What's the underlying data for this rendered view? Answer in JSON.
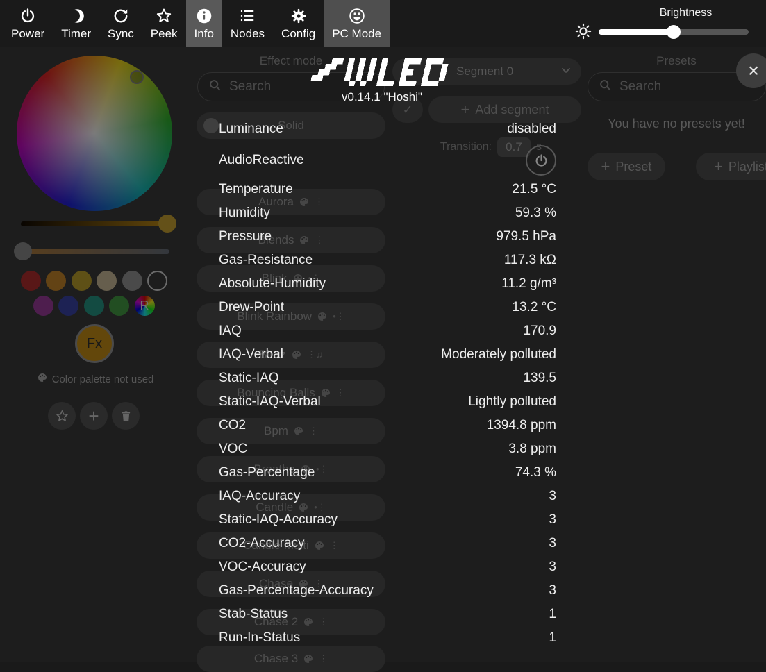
{
  "toolbar": {
    "items": [
      {
        "key": "power",
        "label": "Power",
        "icon": "power-icon",
        "active": false
      },
      {
        "key": "timer",
        "label": "Timer",
        "icon": "moon-icon",
        "active": false
      },
      {
        "key": "sync",
        "label": "Sync",
        "icon": "sync-icon",
        "active": false
      },
      {
        "key": "peek",
        "label": "Peek",
        "icon": "star-icon",
        "active": false
      },
      {
        "key": "info",
        "label": "Info",
        "icon": "info-icon",
        "active": true
      },
      {
        "key": "nodes",
        "label": "Nodes",
        "icon": "nodes-icon",
        "active": false
      },
      {
        "key": "config",
        "label": "Config",
        "icon": "gear-icon",
        "active": false
      },
      {
        "key": "pcmode",
        "label": "PC Mode",
        "icon": "smiley-icon",
        "active": true
      }
    ]
  },
  "brightness": {
    "label": "Brightness",
    "percent": 50
  },
  "icons": {
    "close": "×",
    "check": "✓",
    "more": "⋮",
    "music": "♫",
    "plus": "+",
    "star": "☆"
  },
  "info": {
    "version": "v0.14.1 \"Hoshi\"",
    "rows": [
      {
        "label": "Luminance",
        "value": "disabled"
      },
      {
        "label": "AudioReactive",
        "value": "",
        "power_button": true
      },
      {
        "label": "Temperature",
        "value": "21.5 °C"
      },
      {
        "label": "Humidity",
        "value": "59.3 %"
      },
      {
        "label": "Pressure",
        "value": "979.5 hPa"
      },
      {
        "label": "Gas-Resistance",
        "value": "117.3 kΩ"
      },
      {
        "label": "Absolute-Humidity",
        "value": "11.2 g/m³"
      },
      {
        "label": "Drew-Point",
        "value": "13.2 °C"
      },
      {
        "label": "IAQ",
        "value": "170.9"
      },
      {
        "label": "IAQ-Verbal",
        "value": "Moderately polluted"
      },
      {
        "label": "Static-IAQ",
        "value": "139.5"
      },
      {
        "label": "Static-IAQ-Verbal",
        "value": "Lightly polluted"
      },
      {
        "label": "CO2",
        "value": "1394.8 ppm"
      },
      {
        "label": "VOC",
        "value": "3.8 ppm"
      },
      {
        "label": "Gas-Percentage",
        "value": "74.3 %"
      },
      {
        "label": "IAQ-Accuracy",
        "value": "3"
      },
      {
        "label": "Static-IAQ-Accuracy",
        "value": "3"
      },
      {
        "label": "CO2-Accuracy",
        "value": "3"
      },
      {
        "label": "VOC-Accuracy",
        "value": "3"
      },
      {
        "label": "Gas-Percentage-Accuracy",
        "value": "3"
      },
      {
        "label": "Stab-Status",
        "value": "1"
      },
      {
        "label": "Run-In-Status",
        "value": "1"
      }
    ]
  },
  "effects": {
    "title": "Effect mode",
    "search_placeholder": "Search",
    "items": [
      {
        "name": "Solid",
        "selected": true,
        "palette": false,
        "flags": ""
      },
      {
        "name": "Aurora",
        "palette": true,
        "flags": "⋮"
      },
      {
        "name": "Blends",
        "palette": true,
        "flags": "⋮"
      },
      {
        "name": "Blink",
        "palette": true,
        "flags": "•⋮"
      },
      {
        "name": "Blink Rainbow",
        "palette": true,
        "flags": "•⋮"
      },
      {
        "name": "Blurz",
        "palette": true,
        "flags": "⋮♫"
      },
      {
        "name": "Bouncing Balls",
        "palette": true,
        "flags": "⋮"
      },
      {
        "name": "Bpm",
        "palette": true,
        "flags": "⋮"
      },
      {
        "name": "Breathe",
        "palette": true,
        "flags": "•⋮"
      },
      {
        "name": "Candle",
        "palette": true,
        "flags": "•⋮"
      },
      {
        "name": "Candle Multi",
        "palette": true,
        "flags": "⋮"
      },
      {
        "name": "Chase",
        "palette": true,
        "flags": "⋮"
      },
      {
        "name": "Chase 2",
        "palette": true,
        "flags": "⋮"
      },
      {
        "name": "Chase 3",
        "palette": true,
        "flags": "⋮"
      }
    ]
  },
  "segment": {
    "title": "Segment 0",
    "add_label": "Add segment",
    "transition_label": "Transition:",
    "transition_value": "0.7",
    "transition_unit": "s"
  },
  "presets": {
    "title": "Presets",
    "search_placeholder": "Search",
    "empty": "You have no presets yet!",
    "preset_button": "Preset",
    "playlist_button": "Playlist"
  },
  "color_panel": {
    "note": "Color palette not used",
    "fx": "Fx",
    "random": "R",
    "swatches_row1": [
      "#cc2a2a",
      "#d98a1a",
      "#c9a81a",
      "#d8c49a",
      "#9a9a9a",
      "outline"
    ],
    "swatches_row2": [
      "#b03ab0",
      "#3a46c0",
      "#17a08a",
      "#3aa83a",
      "rainbow"
    ]
  },
  "colors": {
    "accent": "#d89400",
    "toolbar_active": "#595959",
    "background": "#1a1a1a"
  }
}
